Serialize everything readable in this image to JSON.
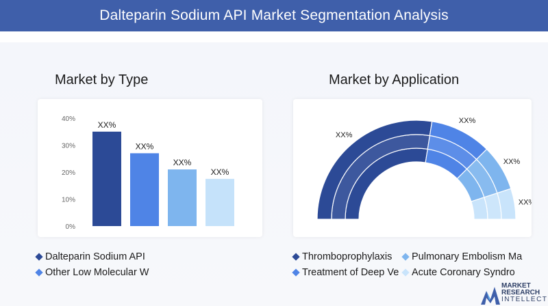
{
  "header": {
    "title": "Dalteparin Sodium API Market Segmentation Analysis"
  },
  "left": {
    "title": "Market by Type",
    "legend": [
      {
        "label": "Dalteparin Sodium API",
        "color": "#2c4a96"
      },
      {
        "label": "Other Low Molecular W",
        "color": "#4f84e6"
      }
    ]
  },
  "right": {
    "title": "Market by Application",
    "legend": [
      {
        "label": "Thromboprophylaxis",
        "color": "#2c4a96"
      },
      {
        "label": "Pulmonary Embolism Ma",
        "color": "#7eb5ee"
      },
      {
        "label": "Treatment of Deep Ve",
        "color": "#4f84e6"
      },
      {
        "label": "Acute Coronary Syndro",
        "color": "#c9e4fb"
      }
    ]
  },
  "chart_data": [
    {
      "type": "bar",
      "categories": [
        "Dalteparin Sodium API",
        "Other Low Molecular W",
        "",
        ""
      ],
      "values": [
        35,
        27,
        21,
        17.5
      ],
      "data_labels": [
        "XX%",
        "XX%",
        "XX%",
        "XX%"
      ],
      "colors": [
        "#2c4a96",
        "#4f84e6",
        "#7eb5ee",
        "#c5e2fa"
      ],
      "yticks": [
        "0%",
        "10%",
        "20%",
        "30%",
        "40%"
      ],
      "ylim": [
        0,
        40
      ]
    },
    {
      "type": "pie",
      "categories": [
        "Thromboprophylaxis",
        "Treatment of Deep Ve",
        "Pulmonary Embolism Ma",
        "Acute Coronary Syndro"
      ],
      "values": [
        55,
        20,
        15,
        10
      ],
      "data_labels": [
        "XX%",
        "XX%",
        "XX%",
        "XX%"
      ],
      "colors": [
        "#2c4a96",
        "#4f84e6",
        "#7eb5ee",
        "#c9e4fb"
      ]
    }
  ],
  "logo": {
    "line1": "MARKET",
    "line2": "RESEARCH",
    "line3": "INTELLECT"
  }
}
